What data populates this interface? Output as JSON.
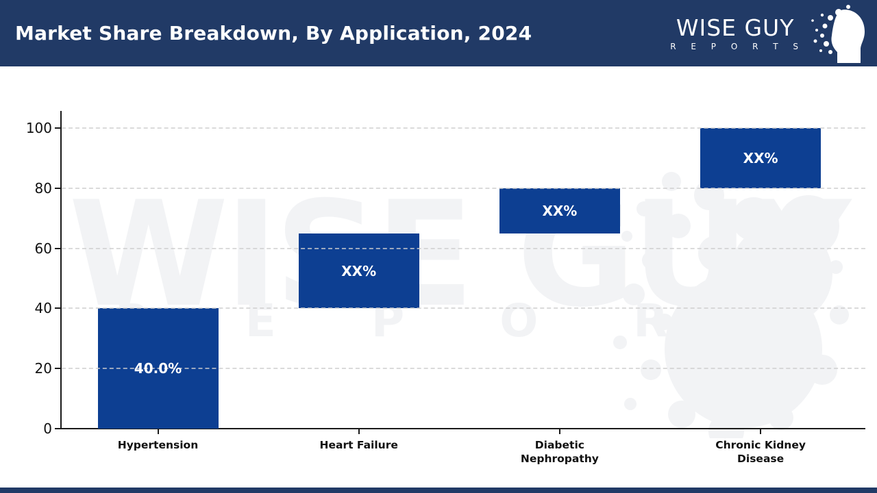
{
  "header": {
    "title": "Market Share Breakdown, By Application, 2024",
    "logo": {
      "name": "WISE GUY",
      "sub": "R E P O R T S"
    }
  },
  "watermark": {
    "line1": "WISE GUY",
    "line2": "R E P O R T S"
  },
  "footer": {},
  "chart_data": {
    "type": "bar",
    "subtype": "floating-waterfall-bars",
    "title": "Market Share Breakdown, By Application, 2024",
    "categories": [
      "Hypertension",
      "Heart Failure",
      "Diabetic Nephropathy",
      "Chronic Kidney Disease"
    ],
    "bars": [
      {
        "category": "Hypertension",
        "start": 0,
        "end": 40,
        "label": "40.0%"
      },
      {
        "category": "Heart Failure",
        "start": 40,
        "end": 65,
        "label": "XX%"
      },
      {
        "category": "Diabetic Nephropathy",
        "start": 65,
        "end": 80,
        "label": "XX%"
      },
      {
        "category": "Chronic Kidney Disease",
        "start": 80,
        "end": 100,
        "label": "XX%"
      }
    ],
    "xlabel": "",
    "ylabel": "",
    "ylim": [
      0,
      100
    ],
    "yticks": [
      0,
      20,
      40,
      60,
      80,
      100
    ],
    "grid": "horizontal-dashed",
    "legend": "none",
    "bar_color": "#0d3f92",
    "bar_label_color": "#ffffff",
    "grid_color": "#d9d9d9",
    "axis_color": "#1a1a1a",
    "header_bg": "#213a66",
    "watermark_color": "#f2f3f5"
  }
}
